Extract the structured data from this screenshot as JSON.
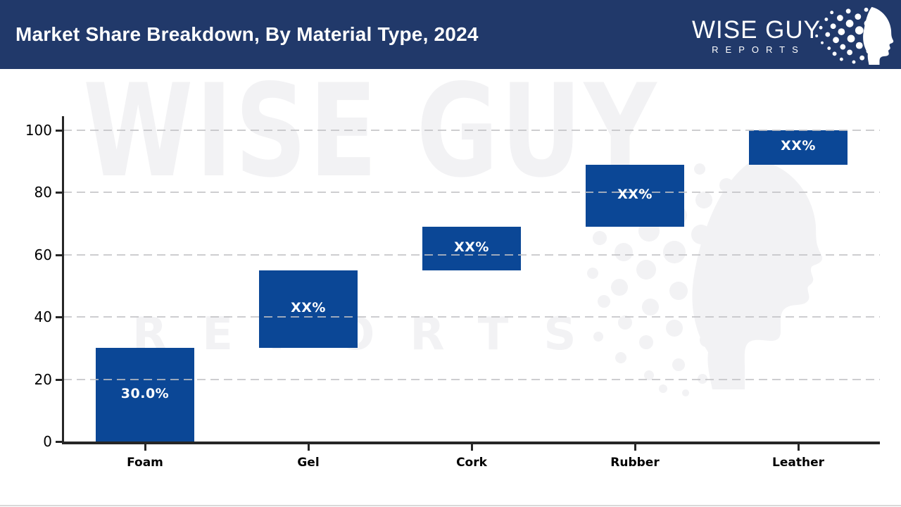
{
  "header": {
    "title": "Market Share Breakdown, By Material Type, 2024",
    "logo": {
      "line1": "WISE GUY",
      "line2": "REPORTS"
    }
  },
  "watermark": {
    "line1": "WISE GUY",
    "line2": "REPORTS"
  },
  "chart_data": {
    "type": "bar",
    "subtype": "waterfall",
    "title": "Market Share Breakdown, By Material Type, 2024",
    "xlabel": "",
    "ylabel": "",
    "categories": [
      "Foam",
      "Gel",
      "Cork",
      "Rubber",
      "Leather"
    ],
    "segments": [
      {
        "category": "Foam",
        "start": 0,
        "end": 30,
        "value": 30,
        "label": "30.0%"
      },
      {
        "category": "Gel",
        "start": 30,
        "end": 55,
        "value": 25,
        "label": "XX%"
      },
      {
        "category": "Cork",
        "start": 55,
        "end": 69,
        "value": 14,
        "label": "XX%"
      },
      {
        "category": "Rubber",
        "start": 69,
        "end": 89,
        "value": 20,
        "label": "XX%"
      },
      {
        "category": "Leather",
        "start": 89,
        "end": 100,
        "value": 11,
        "label": "XX%"
      }
    ],
    "y_ticks": [
      0,
      20,
      40,
      60,
      80,
      100
    ],
    "ylim": [
      0,
      105
    ],
    "grid": "horizontal dashed lines at y ticks, drawn over bars",
    "legend": "none",
    "bar_color": "#0b4796",
    "bar_label_color": "#ffffff",
    "grid_color": "#c1c1c4",
    "axis_color": "#262626",
    "header_bg_color": "#21396a",
    "watermark_color": "#f2f2f4"
  }
}
